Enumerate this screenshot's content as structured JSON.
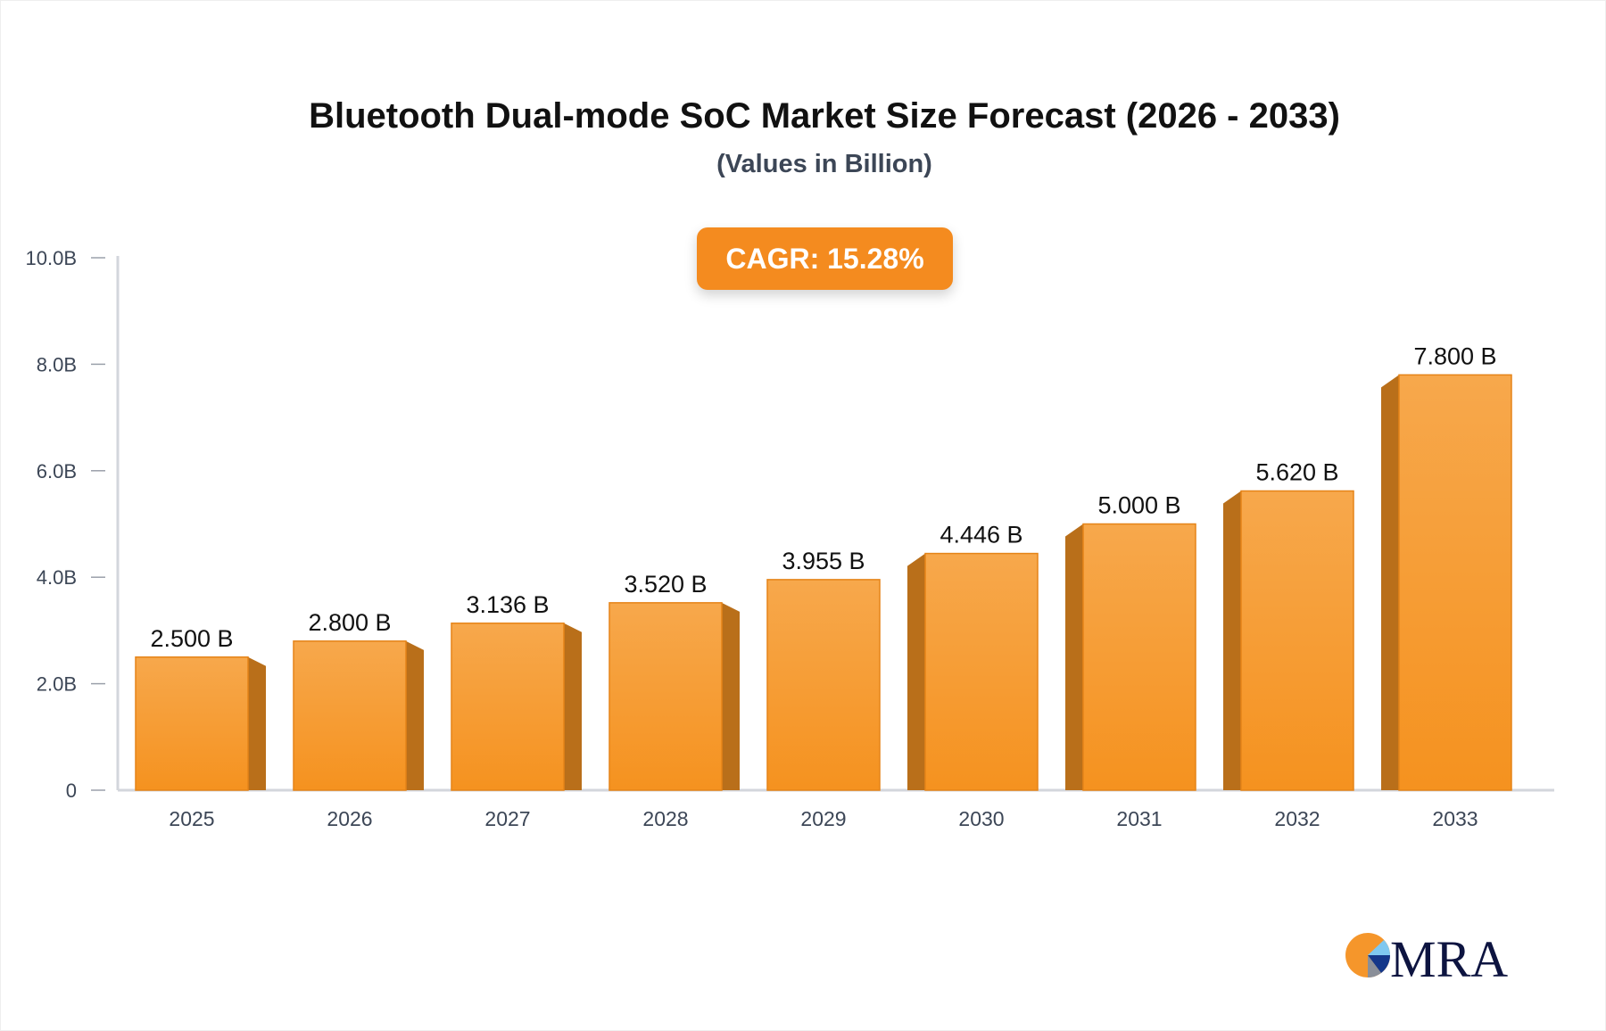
{
  "chart_data": {
    "type": "bar",
    "title": "Bluetooth Dual-mode SoC Market Size Forecast (2026 - 2033)",
    "subtitle": "(Values in Billion)",
    "categories": [
      "2025",
      "2026",
      "2027",
      "2028",
      "2029",
      "2030",
      "2031",
      "2032",
      "2033"
    ],
    "values": [
      2.5,
      2.8,
      3.136,
      3.52,
      3.955,
      4.446,
      5.0,
      5.62,
      7.8
    ],
    "data_labels": [
      "2.500 B",
      "2.800 B",
      "3.136 B",
      "3.520 B",
      "3.955 B",
      "4.446 B",
      "5.000 B",
      "5.620 B",
      "7.800 B"
    ],
    "ylim": [
      0,
      10
    ],
    "yticks": [
      0,
      2,
      4,
      6,
      8,
      10
    ],
    "ytick_labels": [
      "0",
      "2.0B",
      "4.0B",
      "6.0B",
      "8.0B",
      "10.0B"
    ],
    "xlabel": "",
    "ylabel": "",
    "grid": false,
    "bar_color": "#f5962b",
    "annotation": "CAGR: 15.28%"
  },
  "logo": {
    "text": "MRA"
  }
}
